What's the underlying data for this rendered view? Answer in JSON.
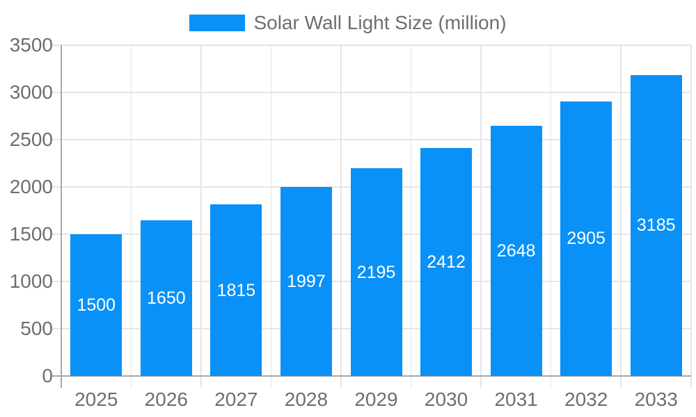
{
  "chart_data": {
    "type": "bar",
    "title": "Solar Wall Light Size (million)",
    "legend_position": "top",
    "categories": [
      "2025",
      "2026",
      "2027",
      "2028",
      "2029",
      "2030",
      "2031",
      "2032",
      "2033"
    ],
    "series": [
      {
        "name": "Solar Wall Light Size (million)",
        "values": [
          1500,
          1650,
          1815,
          1997,
          2195,
          2412,
          2648,
          2905,
          3185
        ]
      }
    ],
    "bar_labels": [
      "1500",
      "1650",
      "1815",
      "1997",
      "2195",
      "2412",
      "2648",
      "2905",
      "3185"
    ],
    "xlabel": "",
    "ylabel": "",
    "ylim": [
      0,
      3500
    ],
    "yticks": [
      0,
      500,
      1000,
      1500,
      2000,
      2500,
      3000,
      3500
    ],
    "grid": true,
    "colors": {
      "bar": "#0a91f8",
      "grid": "#e5e5e5",
      "axis": "#a8a8a8",
      "tick_text": "#6e6e6e",
      "bar_label_text": "#ffffff",
      "background": "#ffffff"
    }
  }
}
